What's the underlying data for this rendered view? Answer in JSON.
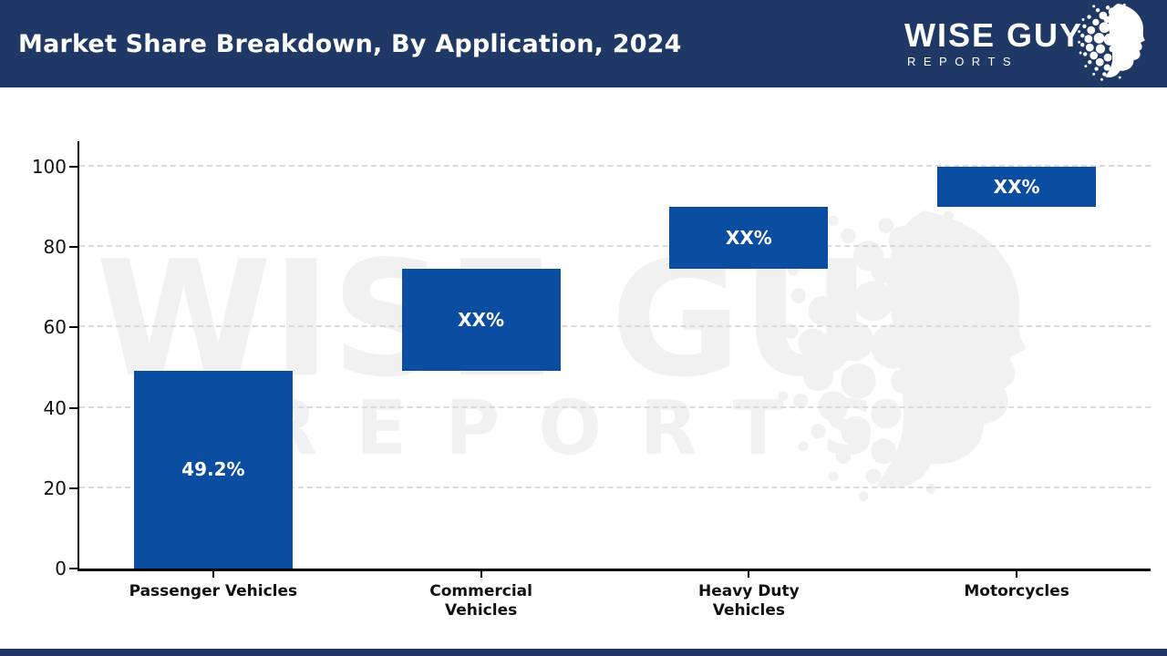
{
  "header": {
    "title": "Market Share Breakdown, By Application, 2024",
    "brand": {
      "name_top": "WISE GUY",
      "name_bottom": "REPORTS"
    }
  },
  "watermark": {
    "line1": "WISE GUY",
    "line2": "REPORTS"
  },
  "colors": {
    "header_bg": "#1f3865",
    "bar": "#0b4da0",
    "grid": "#dadada",
    "axis": "#000000",
    "watermark": "#f1f1f1",
    "bar_label": "#ffffff"
  },
  "chart_data": {
    "type": "bar",
    "variant": "waterfall",
    "title": "Market Share Breakdown, By Application, 2024",
    "xlabel": "",
    "ylabel": "",
    "categories": [
      "Passenger Vehicles",
      "Commercial\nVehicles",
      "Heavy Duty\nVehicles",
      "Motorcycles"
    ],
    "segments": [
      {
        "category": "Passenger Vehicles",
        "label": "49.2%",
        "start": 0,
        "end": 49.2
      },
      {
        "category": "Commercial Vehicles",
        "label": "XX%",
        "start": 49.2,
        "end": 74.6
      },
      {
        "category": "Heavy Duty Vehicles",
        "label": "XX%",
        "start": 74.6,
        "end": 90.0
      },
      {
        "category": "Motorcycles",
        "label": "XX%",
        "start": 90.0,
        "end": 100.0
      }
    ],
    "yticks": [
      0,
      20,
      40,
      60,
      80,
      100
    ],
    "ylim": [
      0,
      107
    ],
    "grid": "horizontal-dashed",
    "legend": false,
    "bar_color": "#0b4da0"
  }
}
